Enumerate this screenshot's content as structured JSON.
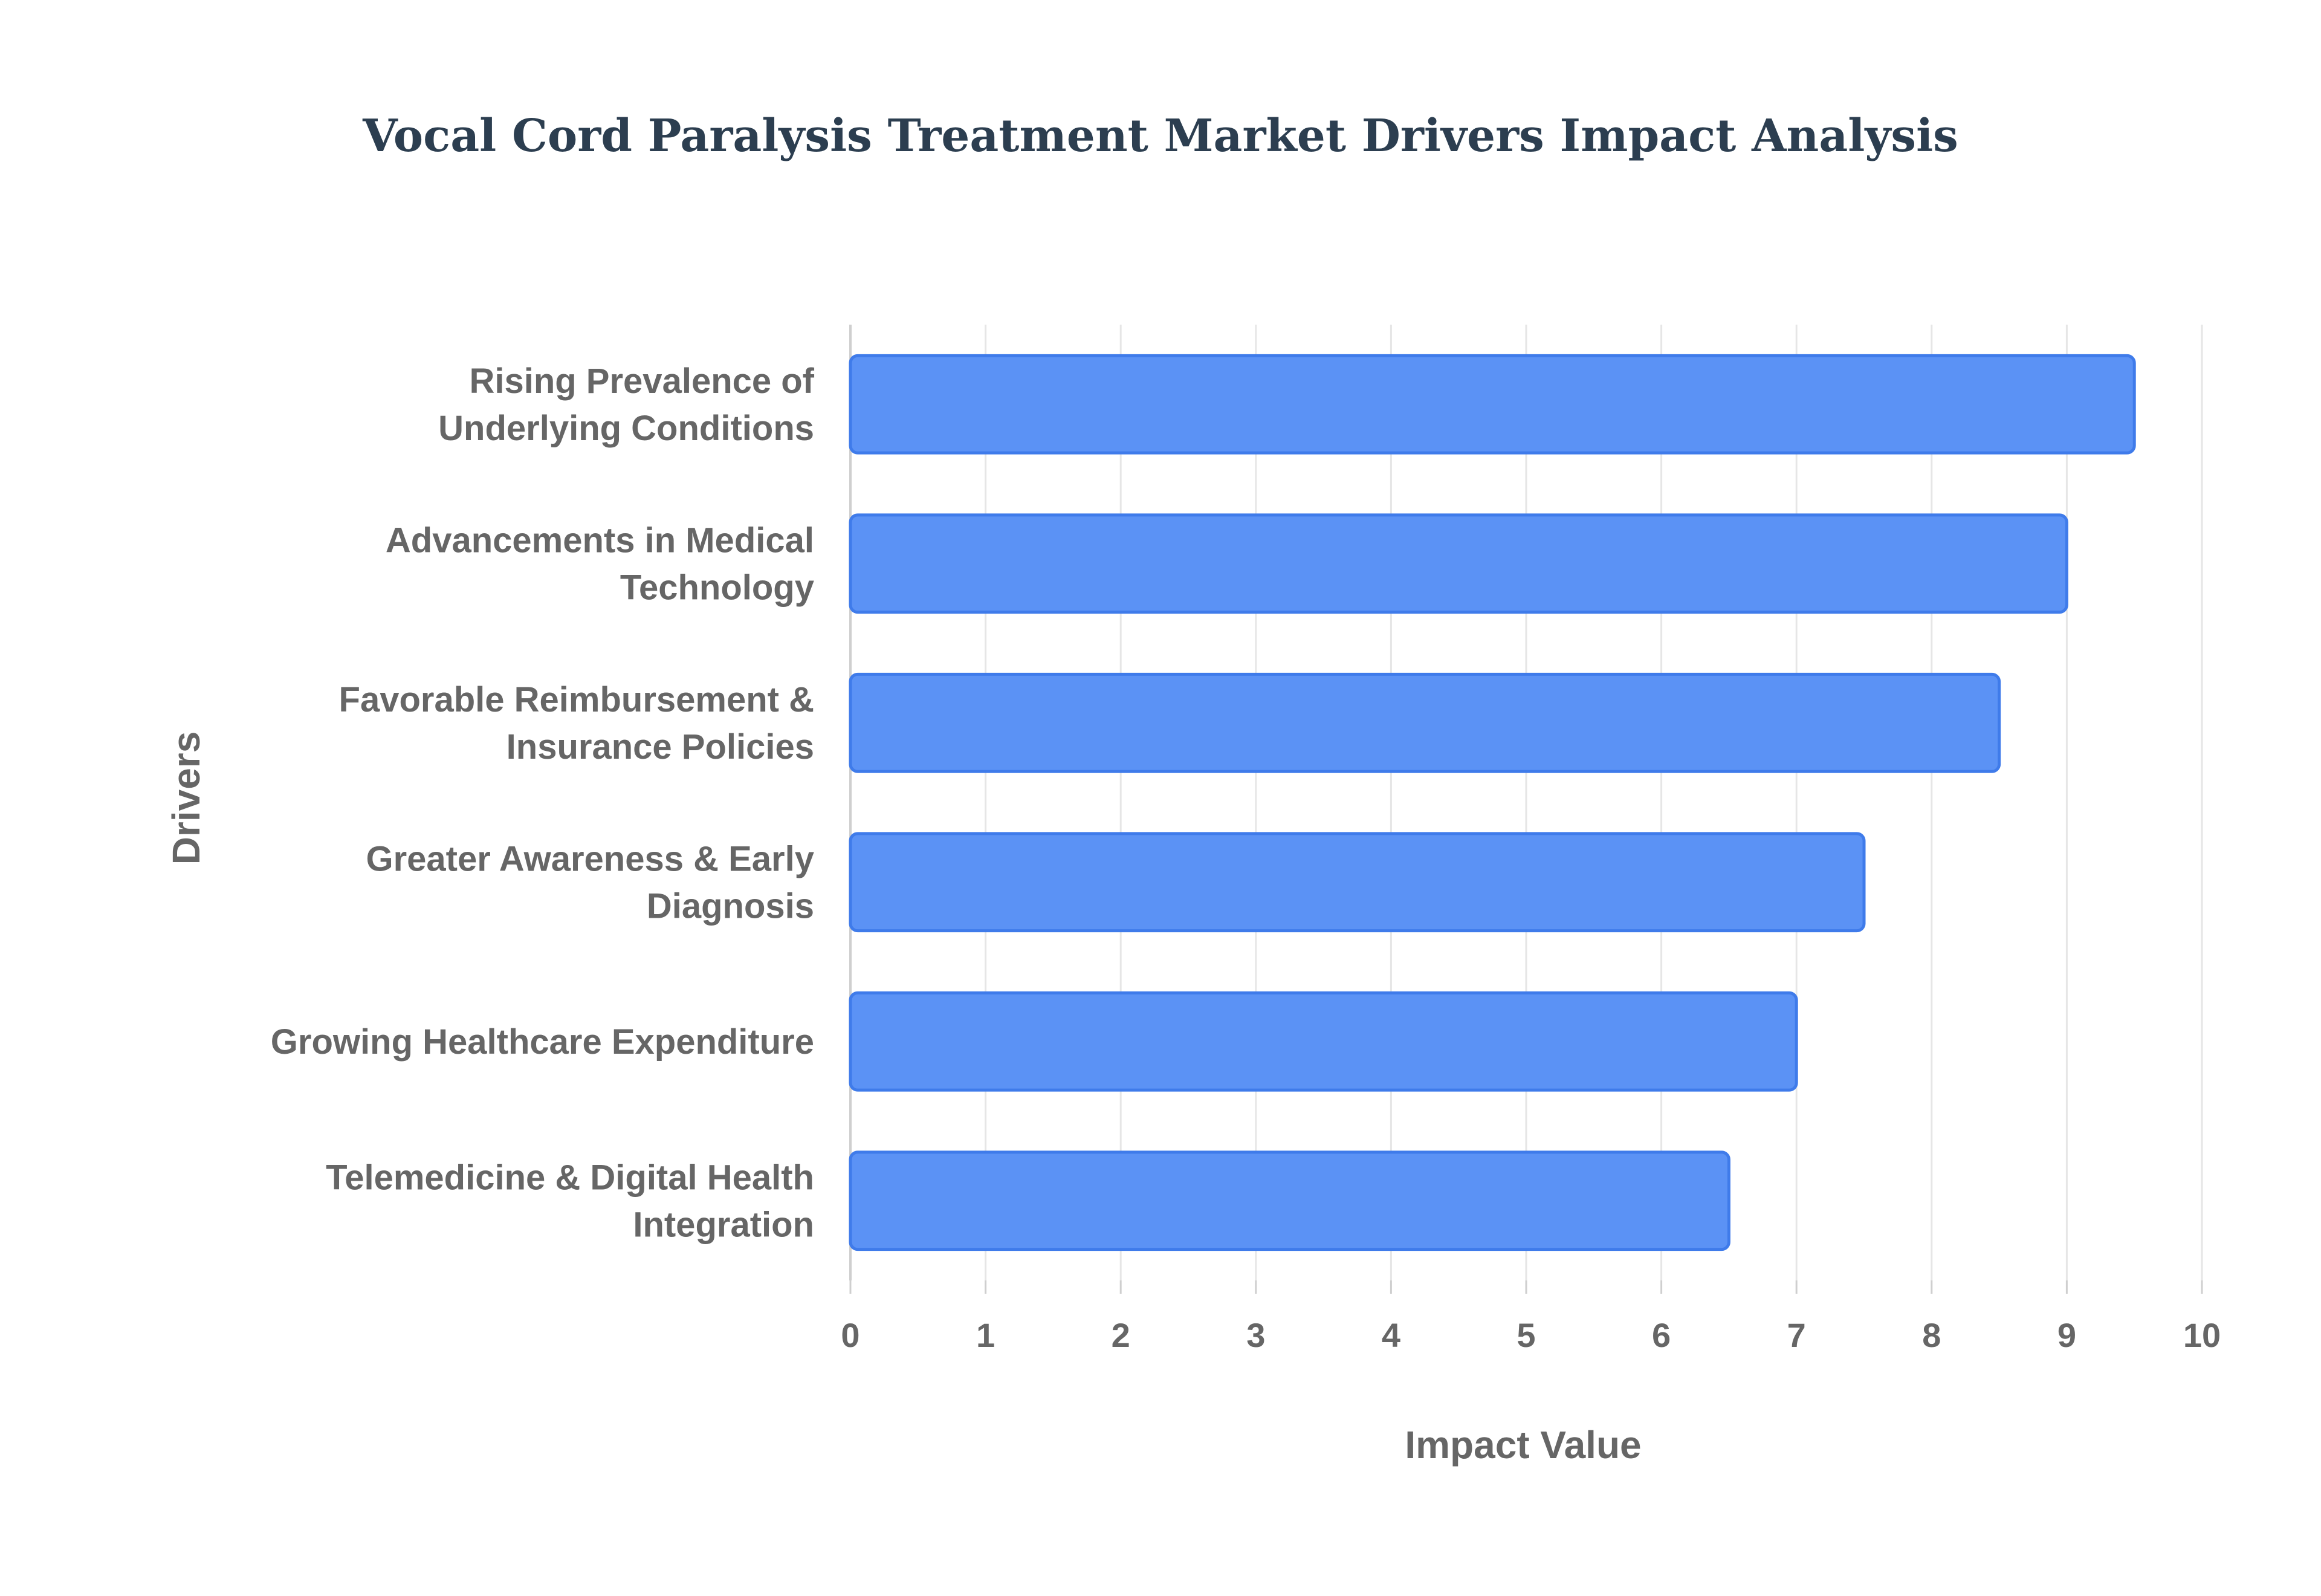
{
  "chart_data": {
    "type": "bar",
    "orientation": "horizontal",
    "title": "Vocal Cord Paralysis Treatment Market Drivers Impact Analysis",
    "xlabel": "Impact Value",
    "ylabel": "Drivers",
    "categories": [
      [
        "Rising Prevalence of",
        "Underlying Conditions"
      ],
      [
        "Advancements in Medical",
        "Technology"
      ],
      [
        "Favorable Reimbursement &",
        "Insurance Policies"
      ],
      [
        "Greater Awareness & Early",
        "Diagnosis"
      ],
      [
        "Growing Healthcare Expenditure"
      ],
      [
        "Telemedicine & Digital Health",
        "Integration"
      ]
    ],
    "values": [
      9.5,
      9,
      8.5,
      7.5,
      7,
      6.5
    ],
    "xlim": [
      0,
      10
    ],
    "xticks": [
      "0",
      "1",
      "2",
      "3",
      "4",
      "5",
      "6",
      "7",
      "8",
      "9",
      "10"
    ],
    "grid": "vertical",
    "legend": "none",
    "colors": {
      "bar_fill": "#5b92f5",
      "bar_stroke": "#3f7bea",
      "grid": "#e6e6e6",
      "axis": "#cfcfcf",
      "title": "#2c3e50",
      "text": "#666666"
    }
  }
}
